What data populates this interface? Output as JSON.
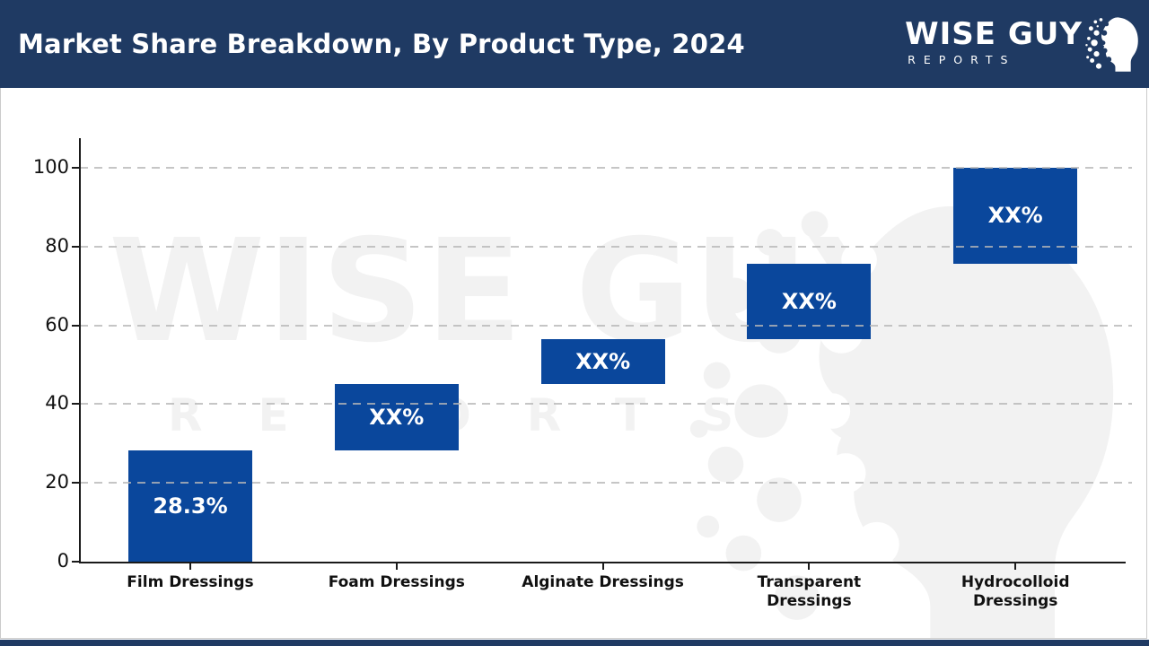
{
  "header": {
    "title": "Market Share Breakdown, By Product Type, 2024",
    "logo": {
      "line1": "WISE GUY",
      "line2": "REPORTS"
    }
  },
  "watermark": {
    "line1": "WISE GUY",
    "line2": "REPORTS"
  },
  "colors": {
    "header_bg": "#1f3a63",
    "bar": "#0a479c",
    "axis": "#1a1a1a",
    "grid": "#d9d9d9",
    "bar_label_text": "#ffffff",
    "watermark": "#f2f2f2"
  },
  "chart_data": {
    "type": "bar",
    "subtype": "waterfall",
    "title": "Market Share Breakdown, By Product Type, 2024",
    "categories": [
      "Film Dressings",
      "Foam Dressings",
      "Alginate Dressings",
      "Transparent Dressings",
      "Hydrocolloid Dressings"
    ],
    "segments": [
      {
        "category": "Film Dressings",
        "start": 0,
        "end": 28.3,
        "label": "28.3%"
      },
      {
        "category": "Foam Dressings",
        "start": 28.3,
        "end": 45.2,
        "label": "XX%"
      },
      {
        "category": "Alginate Dressings",
        "start": 45.2,
        "end": 56.5,
        "label": "XX%"
      },
      {
        "category": "Transparent Dressings",
        "start": 56.5,
        "end": 75.7,
        "label": "XX%"
      },
      {
        "category": "Hydrocolloid Dressings",
        "start": 75.7,
        "end": 100,
        "label": "XX%"
      }
    ],
    "xlabel": "",
    "ylabel": "",
    "yticks": [
      0,
      20,
      40,
      60,
      80,
      100
    ],
    "ylim": [
      0,
      107
    ],
    "grid": "dashed-horizontal",
    "legend": "none"
  }
}
